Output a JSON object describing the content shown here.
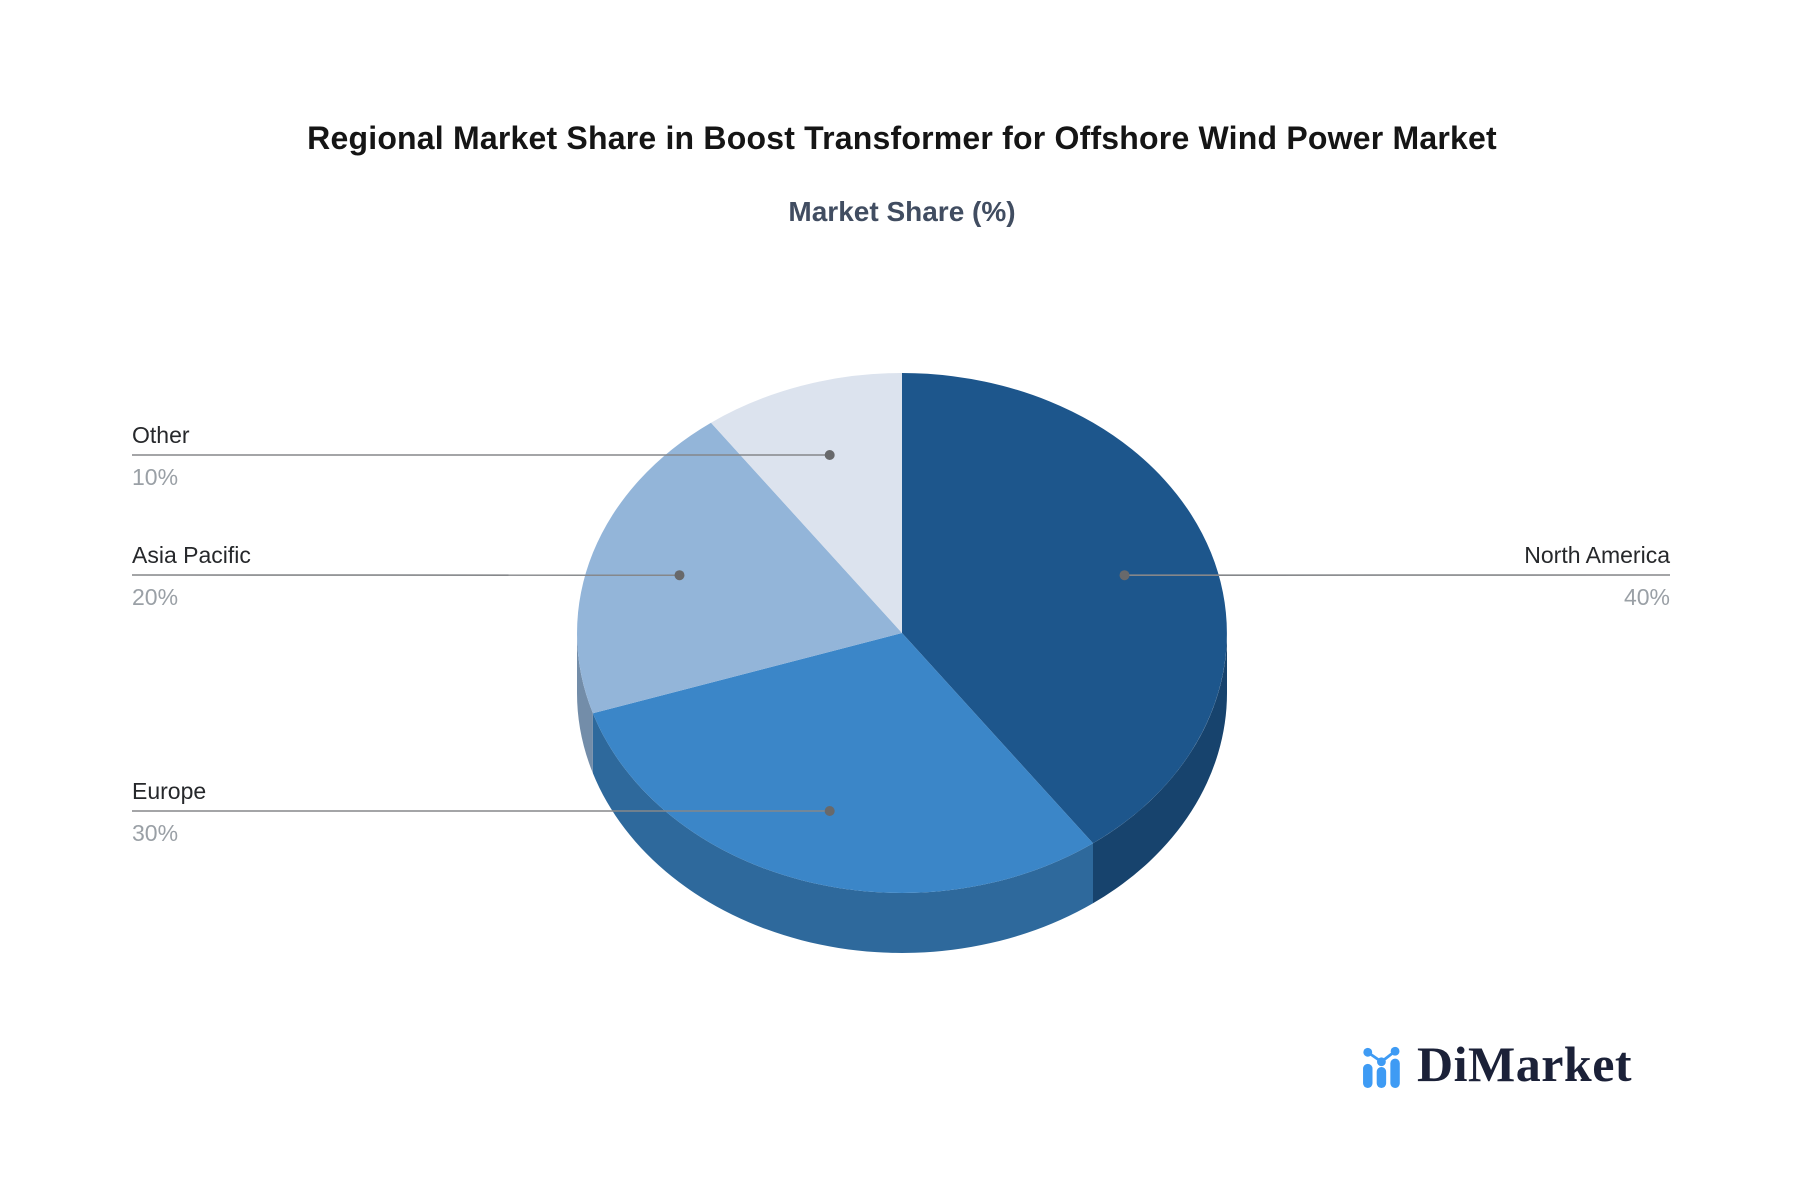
{
  "title": "Regional Market Share in Boost Transformer for Offshore Wind Power Market",
  "subtitle": "Market Share (%)",
  "brand": {
    "name": "DiMarket",
    "icon": "bar-line-chart-icon",
    "icon_color": "#3e9bf4",
    "text_color": "#1b2138"
  },
  "palette": {
    "leader_line": "#85878a",
    "leader_dot": "#68696b",
    "label_text": "#26282b",
    "percent_text": "#9aa0a6",
    "title_text": "#151515",
    "subtitle_text": "#414d61"
  },
  "chart_data": {
    "type": "pie",
    "style": "3d",
    "title": "Regional Market Share in Boost Transformer for Offshore Wind Power Market",
    "subtitle": "Market Share (%)",
    "unit": "%",
    "start_angle_deg": 0,
    "direction": "clockwise",
    "legend_position": "callout-labels",
    "segments": [
      {
        "label": "North America",
        "value": 40,
        "display": "40%",
        "color": "#1d568c"
      },
      {
        "label": "Europe",
        "value": 30,
        "display": "30%",
        "color": "#3b86c8"
      },
      {
        "label": "Asia Pacific",
        "value": 20,
        "display": "20%",
        "color": "#93b5d9"
      },
      {
        "label": "Other",
        "value": 10,
        "display": "10%",
        "color": "#dce3ee"
      }
    ]
  }
}
